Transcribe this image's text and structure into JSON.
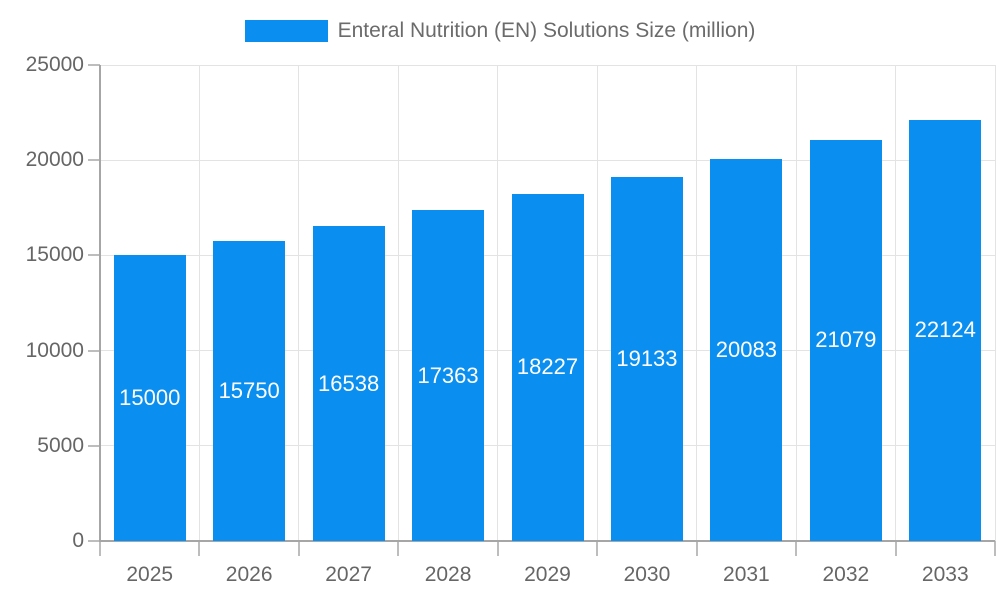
{
  "legend": {
    "label": "Enteral Nutrition (EN) Solutions Size (million)",
    "swatch_icon": "legend-swatch-blue"
  },
  "chart_data": {
    "type": "bar",
    "title": "",
    "xlabel": "",
    "ylabel": "",
    "categories": [
      "2025",
      "2026",
      "2027",
      "2028",
      "2029",
      "2030",
      "2031",
      "2032",
      "2033"
    ],
    "series": [
      {
        "name": "Enteral Nutrition (EN) Solutions Size (million)",
        "values": [
          15000,
          15750,
          16538,
          17363,
          18227,
          19133,
          20083,
          21079,
          22124
        ]
      }
    ],
    "bar_value_labels": [
      "15000",
      "15750",
      "16538",
      "17363",
      "18227",
      "19133",
      "20083",
      "21079",
      "22124"
    ],
    "ylim": [
      0,
      25000
    ],
    "yticks": [
      0,
      5000,
      10000,
      15000,
      20000,
      25000
    ],
    "ytick_labels": [
      "0",
      "5000",
      "10000",
      "15000",
      "20000",
      "25000"
    ],
    "grid": true,
    "legend_position": "top-center"
  },
  "colors": {
    "bar": "#0a8ff0",
    "bar_label_text": "#ffffff",
    "axis_text": "#666666",
    "legend_text": "#6b6b6b",
    "grid_line": "#e3e3e3",
    "axis_line": "#a6a6a6",
    "tick_line": "#bdbdbd",
    "background": "#ffffff"
  }
}
